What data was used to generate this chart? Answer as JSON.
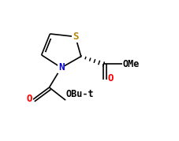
{
  "bg_color": "#ffffff",
  "line_color": "#000000",
  "atom_colors": {
    "N": "#0000cd",
    "S": "#b8860b",
    "O": "#ff0000"
  },
  "font_size_atoms": 9,
  "font_size_groups": 8.5,
  "figsize": [
    2.27,
    1.79
  ],
  "dpi": 100,
  "lw": 1.2
}
